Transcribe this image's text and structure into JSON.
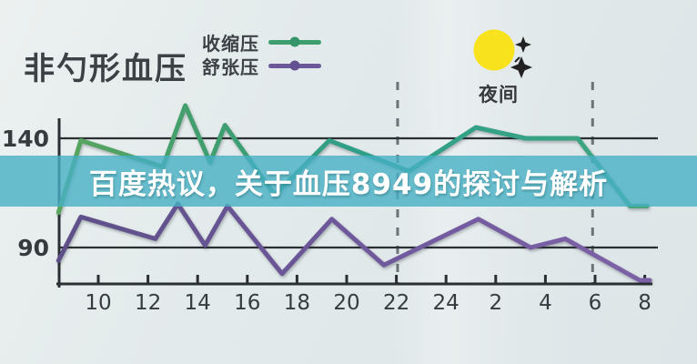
{
  "header": {
    "title": "非勺形血压",
    "legend": [
      {
        "label": "收缩压",
        "series": "systolic"
      },
      {
        "label": "舒张压",
        "series": "diastolic"
      }
    ],
    "night_label": "夜间"
  },
  "banner": {
    "text": "百度热议，关于血压8949的探讨与解析"
  },
  "colors": {
    "systolic": "#3aa07e",
    "diastolic": "#6d579b",
    "axis": "#2b2f33",
    "banner": "#48b0c4",
    "banner_text": "#ffffff",
    "sun_fill": "#f8e11d",
    "sun_stroke": "#222222",
    "night_dash": "#6b7378",
    "text": "#363b40"
  },
  "chart_data": {
    "type": "line",
    "title": "非勺形血压",
    "xlabel": "",
    "ylabel": "",
    "grid": "horizontal-at-y-ticks",
    "legend_position": "top",
    "x_axis": {
      "unit": "hour-of-day",
      "ticks": [
        {
          "t": 10,
          "label": "10"
        },
        {
          "t": 12,
          "label": "12"
        },
        {
          "t": 14,
          "label": "14"
        },
        {
          "t": 16,
          "label": "16"
        },
        {
          "t": 18,
          "label": "18"
        },
        {
          "t": 20,
          "label": "20"
        },
        {
          "t": 22,
          "label": "22"
        },
        {
          "t": 24,
          "label": "24"
        },
        {
          "t": 26,
          "label": "2"
        },
        {
          "t": 28,
          "label": "4"
        },
        {
          "t": 30,
          "label": "6"
        },
        {
          "t": 32,
          "label": "8"
        }
      ]
    },
    "y_axis": {
      "ticks": [
        {
          "v": 140,
          "label": "140"
        },
        {
          "v": 90,
          "label": "90"
        }
      ],
      "range": [
        70,
        160
      ]
    },
    "night_markers_t": [
      22.05,
      29.9
    ],
    "series": [
      {
        "name": "收缩压",
        "key": "systolic",
        "points": [
          [
            8.4,
            106
          ],
          [
            9.3,
            139
          ],
          [
            12.6,
            127
          ],
          [
            13.5,
            155
          ],
          [
            14.5,
            129
          ],
          [
            15.1,
            146
          ],
          [
            17.1,
            114
          ],
          [
            19.3,
            139
          ],
          [
            22.5,
            125
          ],
          [
            25.2,
            145
          ],
          [
            27.2,
            140
          ],
          [
            29.3,
            140
          ],
          [
            31.4,
            109
          ],
          [
            32.1,
            109
          ]
        ]
      },
      {
        "name": "舒张压",
        "key": "diastolic",
        "points": [
          [
            8.4,
            84
          ],
          [
            9.3,
            104
          ],
          [
            12.3,
            94
          ],
          [
            13.2,
            110
          ],
          [
            14.3,
            91
          ],
          [
            15.2,
            109
          ],
          [
            17.4,
            78
          ],
          [
            19.4,
            103
          ],
          [
            21.5,
            82
          ],
          [
            25.3,
            103
          ],
          [
            27.4,
            90
          ],
          [
            28.8,
            94
          ],
          [
            31.8,
            75
          ],
          [
            32.2,
            75
          ]
        ]
      }
    ]
  }
}
